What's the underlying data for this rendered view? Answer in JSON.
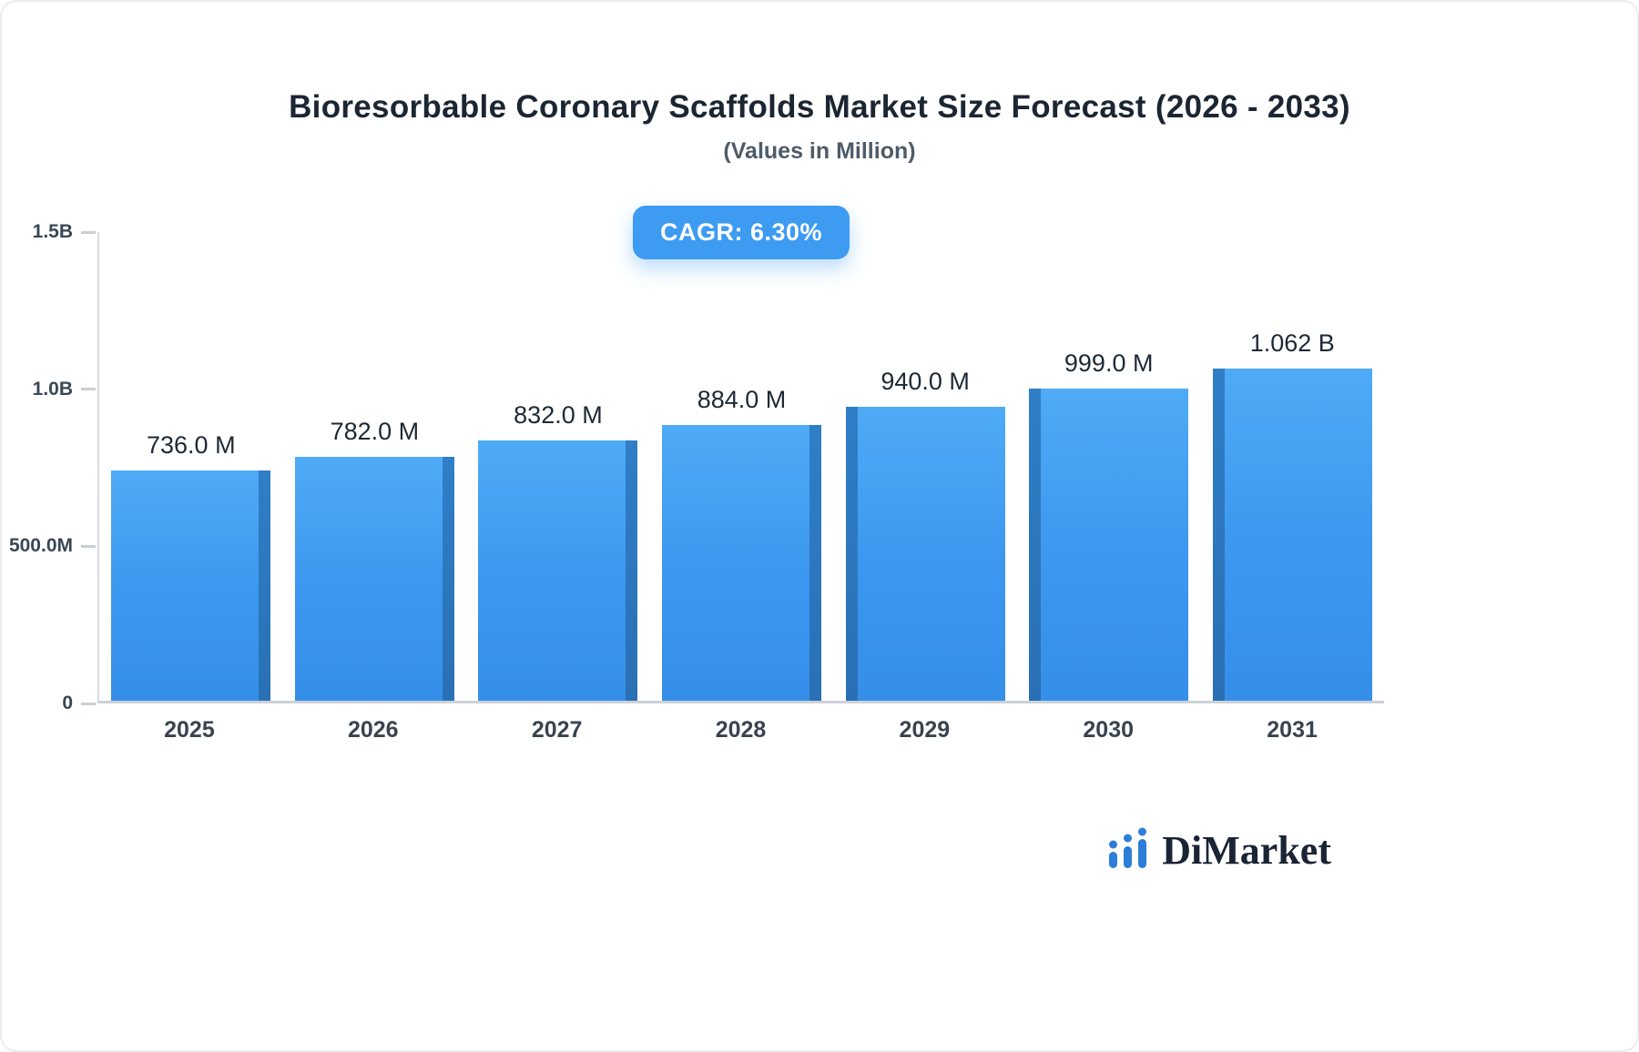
{
  "title": "Bioresorbable Coronary Scaffolds Market Size Forecast (2026 - 2033)",
  "subtitle": "(Values in Million)",
  "badge": {
    "label": "CAGR: 6.30%"
  },
  "logo": {
    "text": "DiMarket"
  },
  "chart_data": {
    "type": "bar",
    "title": "Bioresorbable Coronary Scaffolds Market Size Forecast (2026 - 2033)",
    "subtitle": "(Values in Million)",
    "categories": [
      "2025",
      "2026",
      "2027",
      "2028",
      "2029",
      "2030",
      "2031"
    ],
    "values": [
      736,
      782,
      832,
      884,
      940,
      999,
      1062
    ],
    "value_labels": [
      "736.0 M",
      "782.0 M",
      "832.0 M",
      "884.0 M",
      "940.0 M",
      "999.0 M",
      "1.062 B"
    ],
    "xlabel": "",
    "ylabel": "",
    "ylim": [
      0,
      1500
    ],
    "yticks": [
      {
        "value": 0,
        "label": "0"
      },
      {
        "value": 500,
        "label": "500.0M"
      },
      {
        "value": 1000,
        "label": "1.0B"
      },
      {
        "value": 1500,
        "label": "1.5B"
      }
    ],
    "grid": false,
    "legend": "none",
    "cagr": "6.30%",
    "colors": {
      "bar": "#3f9ef2",
      "bar_edge": "#2b74ba",
      "badge_bg": "#3d9bf2",
      "title_text": "#1c2633",
      "subtitle_text": "#4e5b68",
      "axis_label": "#3a4755",
      "logo_blue": "#2d7ed8",
      "logo_text": "#1b2435"
    }
  }
}
